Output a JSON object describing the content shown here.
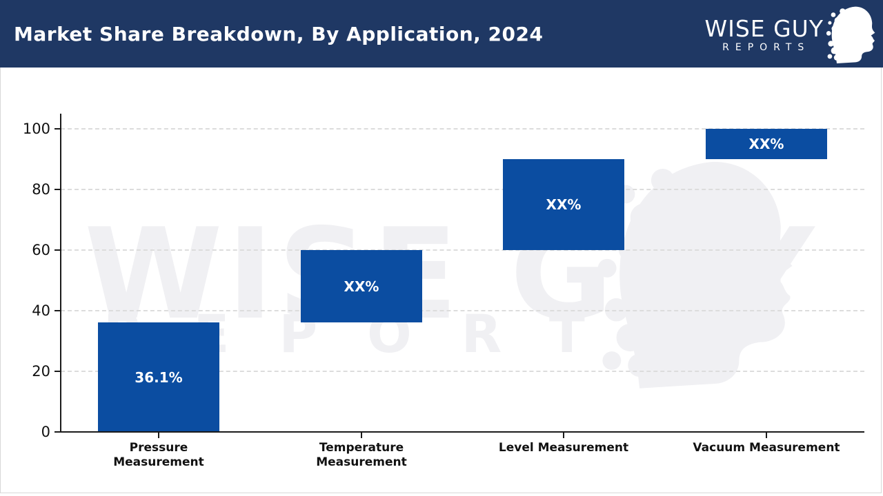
{
  "header": {
    "title": "Market Share Breakdown, By Application, 2024",
    "logo": {
      "name": "WISE GUY",
      "sub": "REPORTS"
    }
  },
  "watermark": {
    "name": "WISE GUY",
    "sub": "REPORTS"
  },
  "chart_data": {
    "type": "bar",
    "subtype": "waterfall",
    "title": "Market Share Breakdown, By Application, 2024",
    "categories": [
      "Pressure Measurement",
      "Temperature Measurement",
      "Level Measurement",
      "Vacuum Measurement"
    ],
    "category_lines": [
      [
        "Pressure",
        "Measurement"
      ],
      [
        "Temperature",
        "Measurement"
      ],
      [
        "Level Measurement"
      ],
      [
        "Vacuum Measurement"
      ]
    ],
    "segments": [
      {
        "category": "Pressure Measurement",
        "start": 0,
        "end": 36.1,
        "label": "36.1%"
      },
      {
        "category": "Temperature Measurement",
        "start": 36.1,
        "end": 60,
        "label": "XX%"
      },
      {
        "category": "Level Measurement",
        "start": 60,
        "end": 90,
        "label": "XX%"
      },
      {
        "category": "Vacuum Measurement",
        "start": 90,
        "end": 100,
        "label": "XX%"
      }
    ],
    "ylim": [
      0,
      100
    ],
    "yticks": [
      0,
      20,
      40,
      60,
      80,
      100
    ],
    "grid": "horizontal-dashed",
    "legend": "none",
    "colors": {
      "bar": "#0b4da1",
      "bar_label": "#ffffff",
      "axis": "#1a1a1a",
      "gridline": "#dcdcdc",
      "header_bg": "#1f3864",
      "header_text": "#ffffff",
      "watermark": "#f0f0f3"
    }
  }
}
